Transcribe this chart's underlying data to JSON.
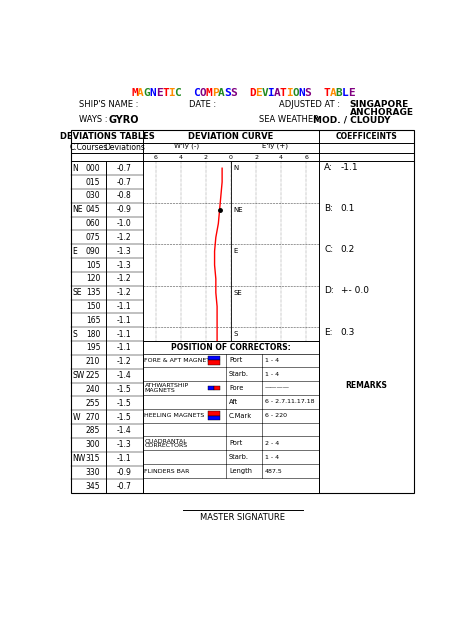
{
  "courses": [
    0,
    15,
    30,
    45,
    60,
    75,
    90,
    105,
    120,
    135,
    150,
    165,
    180,
    195,
    210,
    225,
    240,
    255,
    270,
    285,
    300,
    315,
    330,
    345
  ],
  "deviations": [
    -0.7,
    -0.7,
    -0.8,
    -0.9,
    -1.0,
    -1.2,
    -1.3,
    -1.3,
    -1.2,
    -1.2,
    -1.1,
    -1.1,
    -1.1,
    -1.1,
    -1.2,
    -1.4,
    -1.5,
    -1.5,
    -1.5,
    -1.4,
    -1.3,
    -1.1,
    -0.9,
    -0.7
  ],
  "cardinal_rows": {
    "0": "N",
    "45": "NE",
    "90": "E",
    "135": "SE",
    "180": "S",
    "225": "SW",
    "270": "W",
    "315": "NW"
  },
  "coeff_names": [
    "A",
    "B",
    "C",
    "D",
    "E"
  ],
  "coeff_vals": [
    "-1.1",
    "0.1",
    "0.2",
    "+- 0.0",
    "0.3"
  ],
  "title_chars": "MAGNETIC  COMPASS  DEVIATIONS  TABLE",
  "title_colors": [
    "#FF0000",
    "#FF8C00",
    "#228B22",
    "#0000FF",
    "#800080",
    "#FF0000",
    "#FF8C00",
    "#228B22",
    "#000000",
    "#000000",
    "#0000FF",
    "#800080",
    "#FF0000",
    "#FF8C00",
    "#228B22",
    "#0000FF",
    "#800080",
    "#000000",
    "#000000",
    "#FF0000",
    "#FF8C00",
    "#228B22",
    "#0000FF",
    "#800080",
    "#FF0000",
    "#FF8C00",
    "#228B22",
    "#0000FF",
    "#800080",
    "#000000",
    "#000000",
    "#FF0000",
    "#FF8C00",
    "#228B22",
    "#0000FF",
    "#800080"
  ],
  "background": "#FFFFFF"
}
